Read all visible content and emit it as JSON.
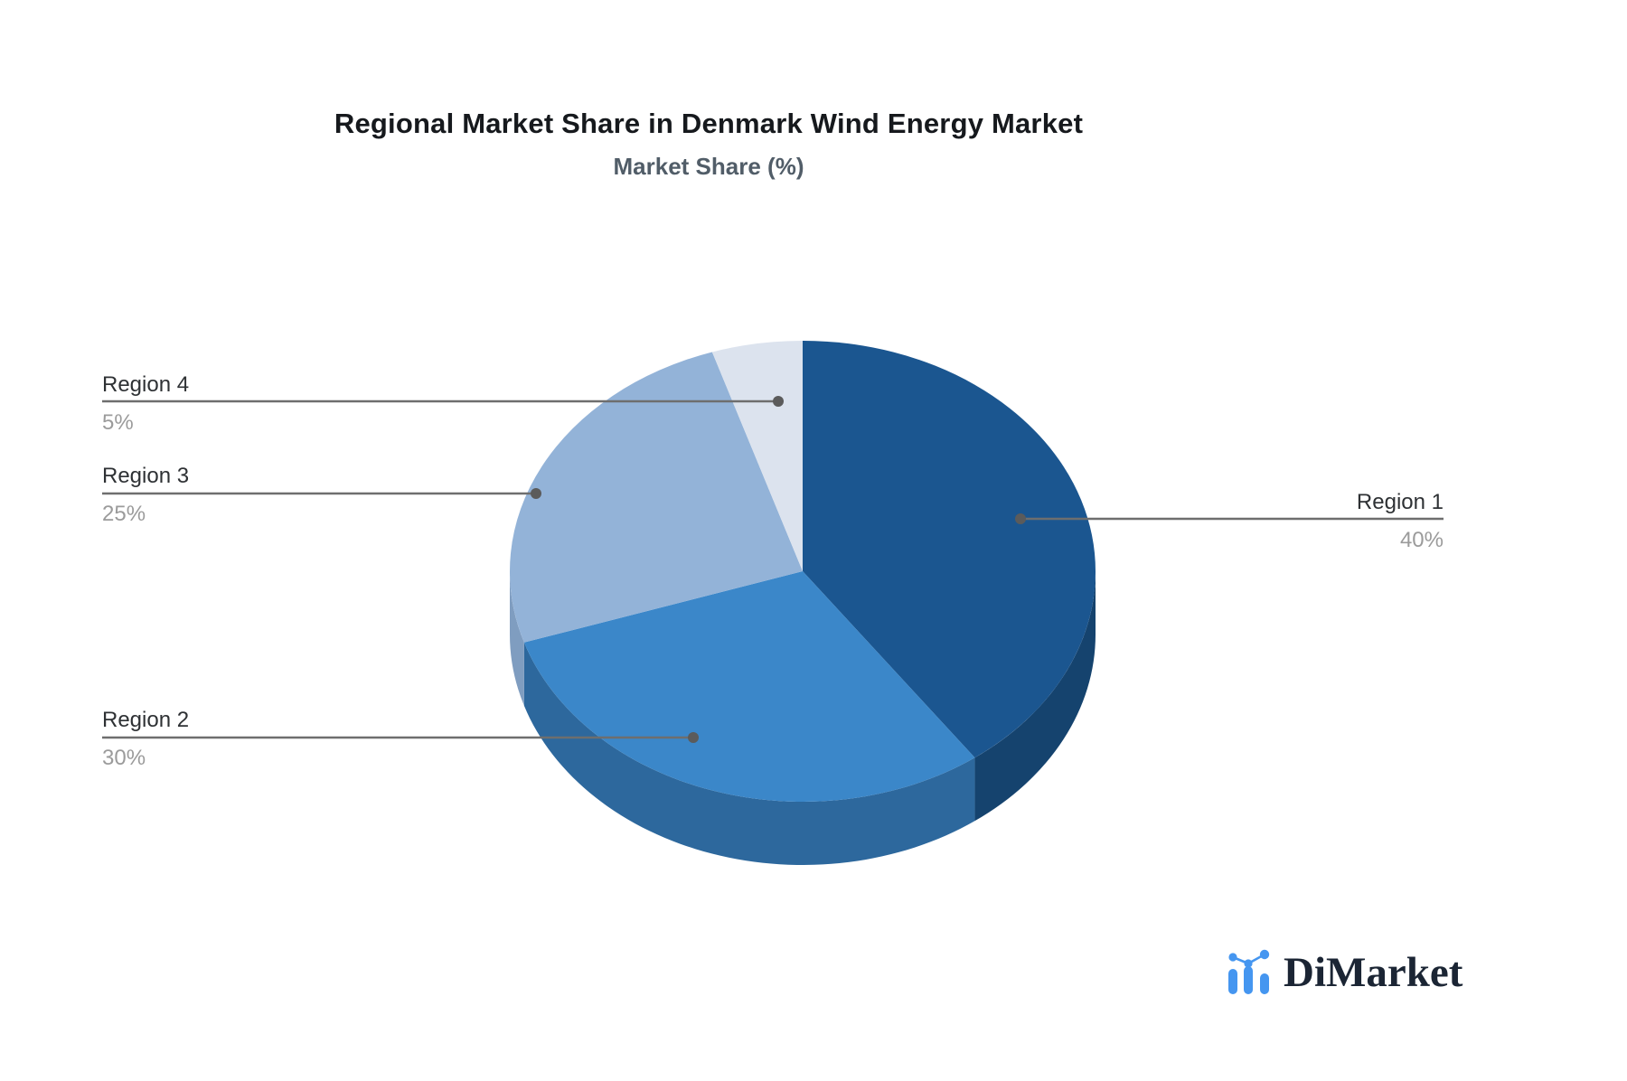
{
  "chart_data": {
    "type": "pie",
    "style": "3d",
    "title": "Regional Market Share in Denmark Wind Energy Market",
    "subtitle": "Market Share (%)",
    "unit": "%",
    "start_angle": "12-o-clock",
    "direction": "clockwise",
    "total": 100,
    "slices": [
      {
        "label": "Region 1",
        "value": 40,
        "pct_label": "40%",
        "color": "#1b5690",
        "side_color": "#15436e"
      },
      {
        "label": "Region 2",
        "value": 30,
        "pct_label": "30%",
        "color": "#3b87c9",
        "side_color": "#2d689d"
      },
      {
        "label": "Region 3",
        "value": 25,
        "pct_label": "25%",
        "color": "#93b3d8",
        "side_color": "#7f9dc0"
      },
      {
        "label": "Region 4",
        "value": 5,
        "pct_label": "5%",
        "color": "#dce3ee",
        "side_color": "#c2cbd9"
      }
    ],
    "leader_line_color": "#6e6e6e",
    "leader_dot_color": "#5b5b5b",
    "label_color": "#2e3134",
    "pct_color": "#9b9b9b"
  },
  "branding": {
    "logo_text": "DiMarket",
    "logo_icon": "bar-chart-with-trend-dots-icon",
    "logo_icon_color": "#4596f0",
    "logo_text_color": "#1b2534"
  }
}
